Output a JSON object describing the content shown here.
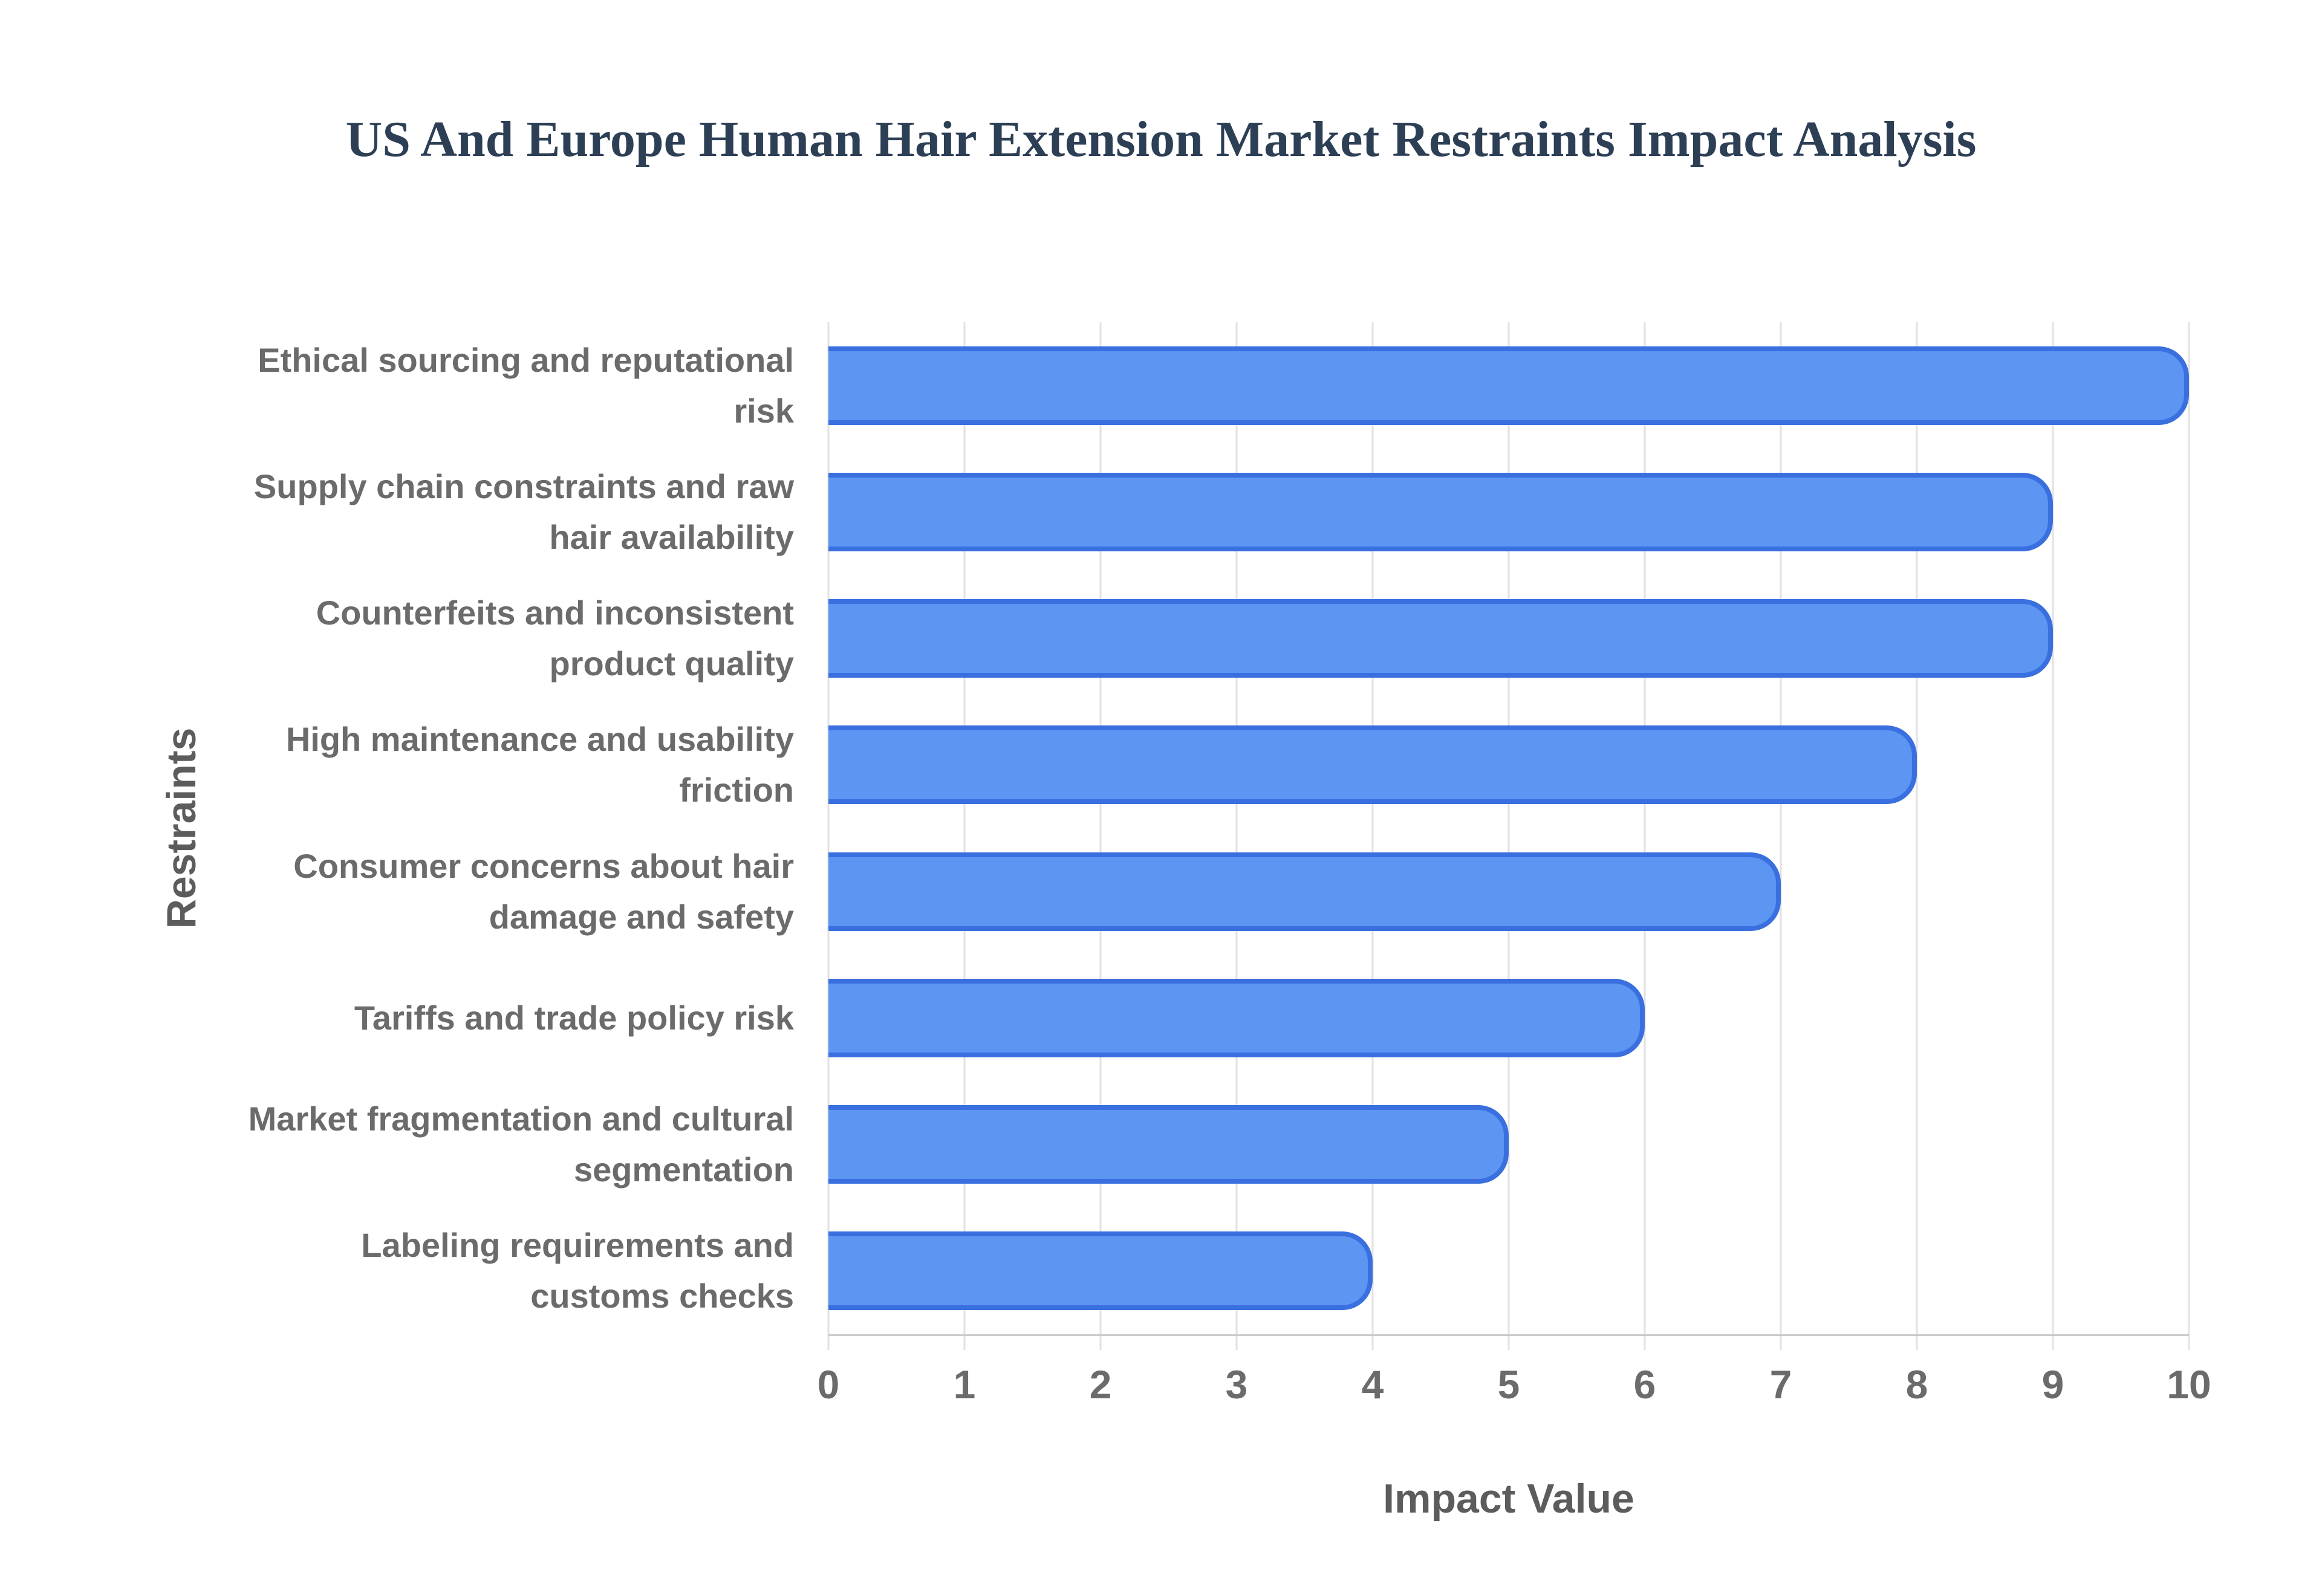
{
  "title": "US And Europe Human Hair Extension Market Restraints Impact Analysis",
  "chart_data": {
    "type": "bar",
    "orientation": "horizontal",
    "title": "US And Europe Human Hair Extension Market Restraints Impact Analysis",
    "categories": [
      "Ethical sourcing and reputational risk",
      "Supply chain constraints and raw hair availability",
      "Counterfeits and inconsistent product quality",
      "High maintenance and usability friction",
      "Consumer concerns about hair damage and safety",
      "Tariffs and trade policy risk",
      "Market fragmentation and cultural segmentation",
      "Labeling requirements and customs checks"
    ],
    "values": [
      10,
      9,
      9,
      8,
      7,
      6,
      5,
      4
    ],
    "xlabel": "Impact Value",
    "ylabel": "Restraints",
    "xlim": [
      0,
      10
    ],
    "xticks": [
      "0",
      "1",
      "2",
      "3",
      "4",
      "5",
      "6",
      "7",
      "8",
      "9",
      "10"
    ],
    "grid": true,
    "legend": false
  },
  "colors": {
    "bar_fill": "#5c95f2",
    "bar_border": "#3a6fe0",
    "gridline": "#e2e2e2",
    "axis_line": "#cccccc",
    "label_text": "#6b6b6b",
    "axis_title_text": "#5c5c5c",
    "title_text": "#2d3f55",
    "background": "#ffffff"
  }
}
